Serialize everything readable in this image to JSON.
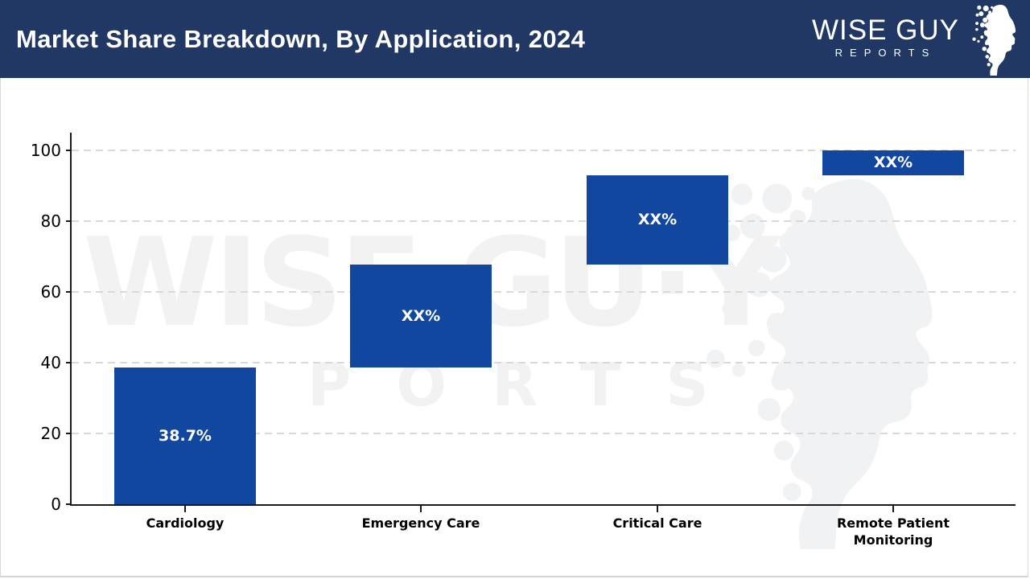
{
  "header": {
    "title": "Market Share Breakdown, By Application, 2024",
    "background_color": "#223864",
    "logo": {
      "line1": "WISE GUY",
      "line2": "REPORTS"
    }
  },
  "watermark": {
    "line1": "WISE GU·Y·",
    "line2": "PORTS"
  },
  "chart_data": {
    "type": "bar",
    "variant": "waterfall-stacked",
    "title": "Market Share Breakdown, By Application, 2024",
    "categories": [
      "Cardiology",
      "Emergency Care",
      "Critical Care",
      "Remote Patient Monitoring"
    ],
    "segments": [
      {
        "category": "Cardiology",
        "start": 0,
        "end": 38.7,
        "label": "38.7%"
      },
      {
        "category": "Emergency Care",
        "start": 38.7,
        "end": 67.7,
        "label": "XX%"
      },
      {
        "category": "Critical Care",
        "start": 67.7,
        "end": 93.0,
        "label": "XX%"
      },
      {
        "category": "Remote Patient Monitoring",
        "start": 93.0,
        "end": 100.0,
        "label": "XX%"
      }
    ],
    "values_pct": [
      38.7,
      29.0,
      25.3,
      7.0
    ],
    "cumulative_pct": [
      38.7,
      67.7,
      93.0,
      100.0
    ],
    "yticks": [
      0,
      20,
      40,
      60,
      80,
      100
    ],
    "ylim": [
      0,
      105
    ],
    "xlabel": "",
    "ylabel": "",
    "grid": "horizontal-dashed",
    "legend": "none",
    "bar_color": "#11479e",
    "bar_label_color": "#ffffff",
    "axis_color": "#1a1a1a",
    "gridline_color": "#d9d9d9"
  }
}
